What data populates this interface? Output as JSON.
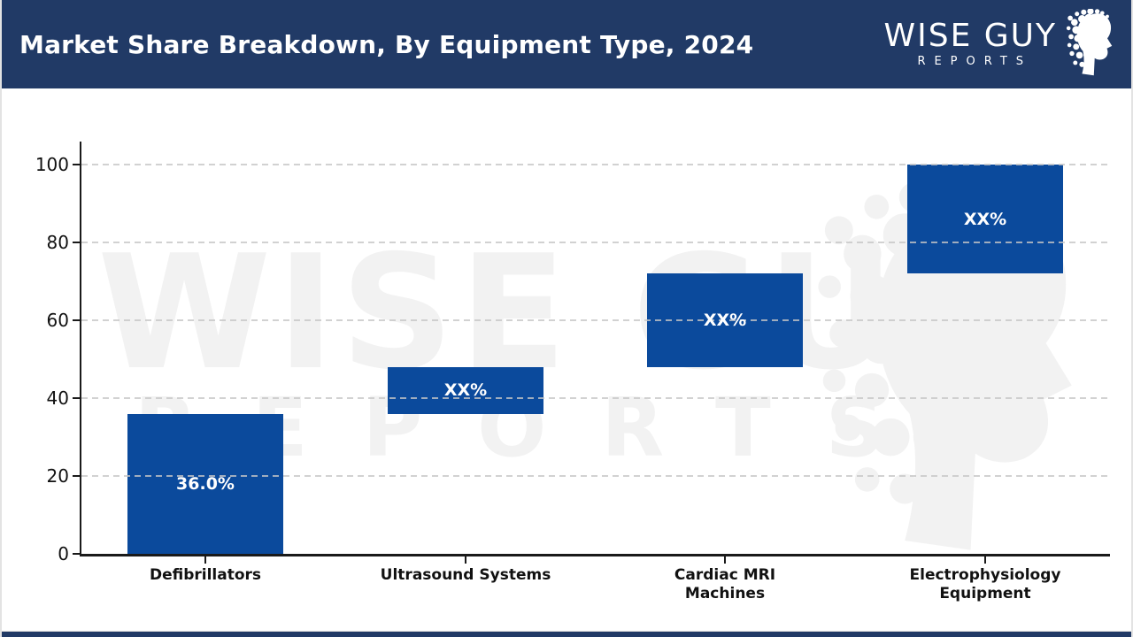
{
  "header": {
    "title": "Market Share Breakdown, By Equipment Type, 2024",
    "logo": {
      "line1": "WISE GUY",
      "line2": "REPORTS"
    }
  },
  "watermark": {
    "line1": "WISE GUY",
    "line2": "REPORTS"
  },
  "footer": {},
  "chart_data": {
    "type": "bar",
    "subtype": "waterfall",
    "title": "Market Share Breakdown, By Equipment Type, 2024",
    "categories": [
      "Defibrillators",
      "Ultrasound Systems",
      "Cardiac MRI\nMachines",
      "Electrophysiology\nEquipment"
    ],
    "series": [
      {
        "name": "Market share by equipment type",
        "segments": [
          {
            "category": "Defibrillators",
            "start": 0,
            "end": 36,
            "label": "36.0%"
          },
          {
            "category": "Ultrasound Systems",
            "start": 36,
            "end": 48,
            "label": "XX%"
          },
          {
            "category": "Cardiac MRI Machines",
            "start": 48,
            "end": 72,
            "label": "XX%"
          },
          {
            "category": "Electrophysiology Equipment",
            "start": 72,
            "end": 100,
            "label": "XX%"
          }
        ]
      }
    ],
    "xlabel": "",
    "ylabel": "",
    "ylim": [
      0,
      106
    ],
    "yticks": [
      0,
      20,
      40,
      60,
      80,
      100
    ],
    "grid": {
      "horizontal": true,
      "style": "dashed",
      "above_bars": true
    },
    "legend": null,
    "colors": {
      "bar": "#0b4a9c",
      "bar_label_text": "#ffffff",
      "header_bg": "#213a66",
      "footer_bg": "#213a66",
      "grid_line": "#c6c6c6",
      "axis": "#1a1a1a",
      "watermark": "#f2f2f2"
    }
  }
}
